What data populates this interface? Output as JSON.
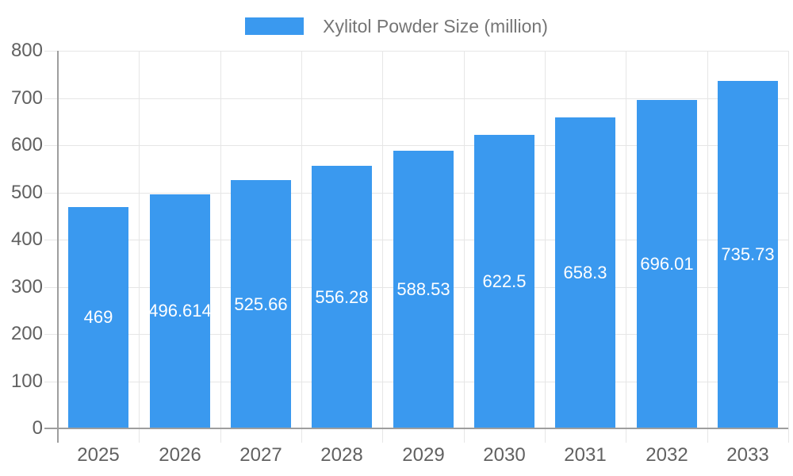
{
  "legend": {
    "label": "Xylitol Powder Size (million)"
  },
  "colors": {
    "bar": "#3a99ef",
    "grid": "#e6e6e6",
    "axis_line": "#9e9e9e",
    "tick_label": "#616161",
    "legend_text": "#757575",
    "value_label": "#ffffff",
    "background": "#ffffff"
  },
  "chart_data": {
    "type": "bar",
    "title": "",
    "series_name": "Xylitol Powder Size (million)",
    "categories": [
      "2025",
      "2026",
      "2027",
      "2028",
      "2029",
      "2030",
      "2031",
      "2032",
      "2033"
    ],
    "values": [
      469,
      496.614,
      525.66,
      556.28,
      588.53,
      622.5,
      658.3,
      696.01,
      735.73
    ],
    "value_labels": [
      "469",
      "496.614",
      "525.66",
      "556.28",
      "588.53",
      "622.5",
      "658.3",
      "696.01",
      "735.73"
    ],
    "xlabel": "",
    "ylabel": "",
    "ylim": [
      0,
      800
    ],
    "ytick_step": 100,
    "ytick_labels": [
      "0",
      "100",
      "200",
      "300",
      "400",
      "500",
      "600",
      "700",
      "800"
    ],
    "grid": "both",
    "legend_position": "top",
    "value_label_position": "inside-center"
  }
}
